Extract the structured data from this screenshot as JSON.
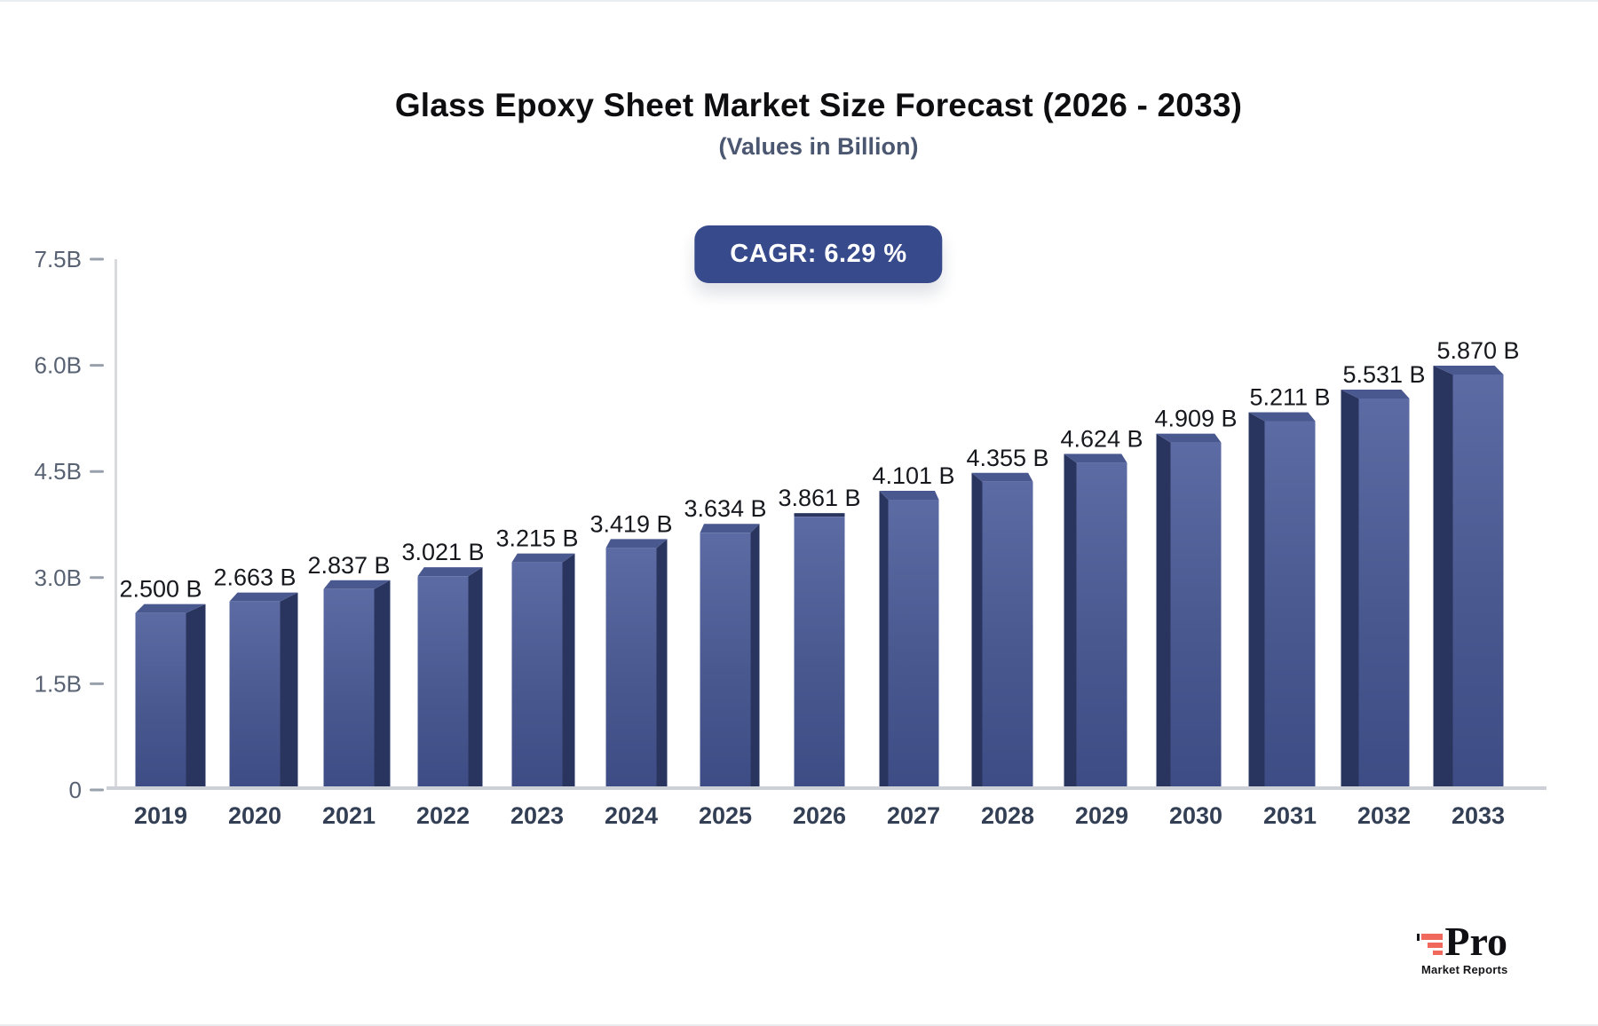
{
  "header": {
    "title": "Glass Epoxy Sheet Market Size Forecast (2026 - 2033)",
    "subtitle": "(Values in Billion)",
    "cagr_label": "CAGR: 6.29 %"
  },
  "chart_data": {
    "type": "bar",
    "title": "Glass Epoxy Sheet Market Size Forecast (2026 - 2033)",
    "subtitle": "(Values in Billion)",
    "unit": "Billion",
    "bar_style": "3d-perspective",
    "grid": false,
    "legend": "none",
    "xlabel": "",
    "ylabel": "",
    "ylim": [
      0,
      7.5
    ],
    "categories": [
      "2019",
      "2020",
      "2021",
      "2022",
      "2023",
      "2024",
      "2025",
      "2026",
      "2027",
      "2028",
      "2029",
      "2030",
      "2031",
      "2032",
      "2033"
    ],
    "values": [
      2.5,
      2.663,
      2.837,
      3.021,
      3.215,
      3.419,
      3.634,
      3.861,
      4.101,
      4.355,
      4.624,
      4.909,
      5.211,
      5.531,
      5.87
    ],
    "value_labels": [
      "2.500 B",
      "2.663 B",
      "2.837 B",
      "3.021 B",
      "3.215 B",
      "3.419 B",
      "3.634 B",
      "3.861 B",
      "4.101 B",
      "4.355 B",
      "4.624 B",
      "4.909 B",
      "5.211 B",
      "5.531 B",
      "5.870 B"
    ],
    "yticks": [
      {
        "v": 0,
        "label": "0"
      },
      {
        "v": 1.5,
        "label": "1.5B"
      },
      {
        "v": 3.0,
        "label": "3.0B"
      },
      {
        "v": 4.5,
        "label": "4.5B"
      },
      {
        "v": 6.0,
        "label": "6.0B"
      },
      {
        "v": 7.5,
        "label": "7.5B"
      }
    ]
  },
  "colors": {
    "bar_front_top": "#5d6ba4",
    "bar_front_mid": "#4a5890",
    "bar_front_bottom": "#3e4c85",
    "bar_side": "#2a355f",
    "axis_line": "#d8dade",
    "baseline": "#cdd0d6",
    "tick_dash": "#98a0ac",
    "ytick_text": "#596273",
    "year_text": "#333f54",
    "value_text": "#16181d",
    "badge_bg": "#374a8b",
    "badge_text": "#ffffff",
    "logo_accent": "#f0695c"
  },
  "logo": {
    "brand": "Pro",
    "tagline": "Market Reports"
  }
}
